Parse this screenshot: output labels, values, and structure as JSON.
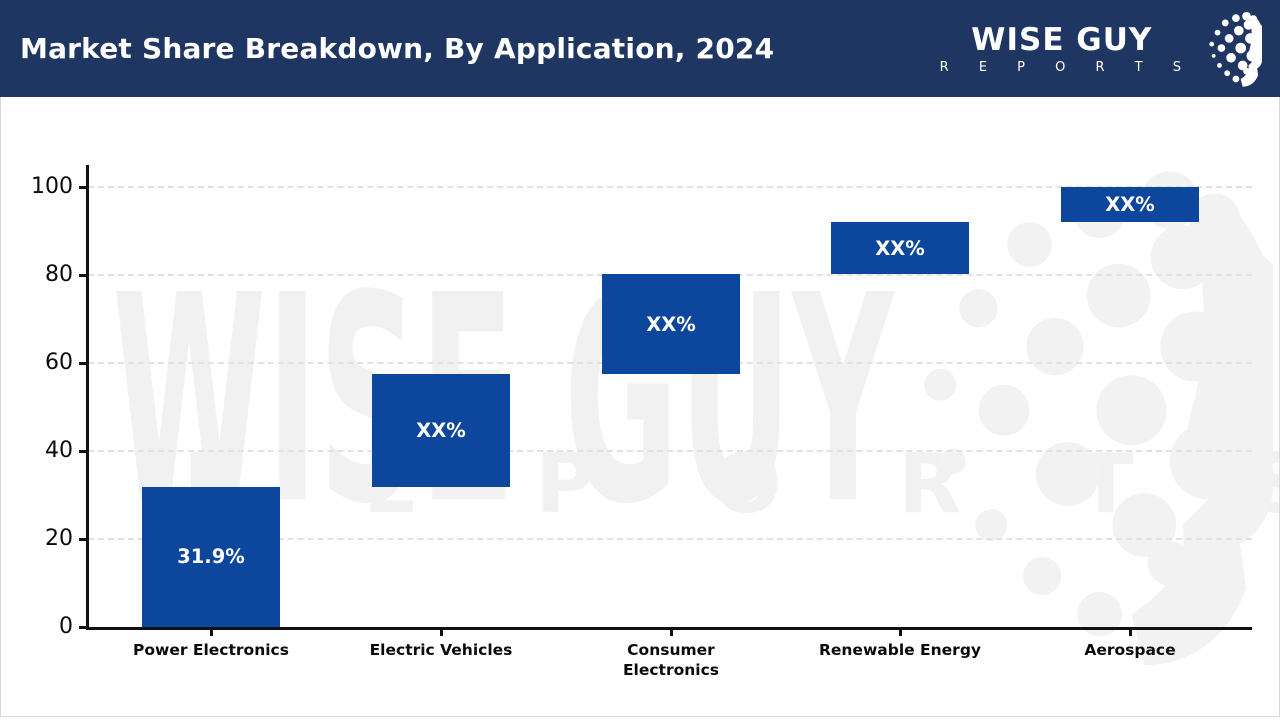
{
  "header": {
    "title": "Market Share Breakdown, By Application, 2024",
    "brand": {
      "line1": "WISE GUY",
      "line2": "R E P O R T S",
      "icon": "dotted-head-profile-icon"
    }
  },
  "watermark": {
    "line1": "WISE GUY",
    "line2": "R E P O R T S",
    "icon": "dotted-head-profile-icon"
  },
  "colors": {
    "header_bg": "#203662",
    "bar": "#0d479d",
    "bar_label": "#ffffff",
    "axis": "#111111",
    "grid": "#e2e2e2",
    "watermark": "#f1f1f1"
  },
  "chart_data": {
    "type": "bar",
    "subtype": "waterfall",
    "title": "Market Share Breakdown, By Application, 2024",
    "xlabel": "",
    "ylabel": "",
    "categories": [
      "Power Electronics",
      "Electric Vehicles",
      "Consumer\nElectronics",
      "Renewable Energy",
      "Aerospace"
    ],
    "segments": [
      {
        "category": "Power Electronics",
        "start": 0,
        "end": 31.9,
        "label": "31.9%"
      },
      {
        "category": "Electric Vehicles",
        "start": 31.9,
        "end": 57.5,
        "label": "XX%"
      },
      {
        "category": "Consumer Electronics",
        "start": 57.5,
        "end": 80.2,
        "label": "XX%"
      },
      {
        "category": "Renewable Energy",
        "start": 80.2,
        "end": 92.0,
        "label": "XX%"
      },
      {
        "category": "Aerospace",
        "start": 92.0,
        "end": 100.0,
        "label": "XX%"
      }
    ],
    "y_ticks": [
      0,
      20,
      40,
      60,
      80,
      100
    ],
    "ylim": [
      0,
      105
    ],
    "grid": "horizontal-dashed",
    "legend": "none"
  }
}
